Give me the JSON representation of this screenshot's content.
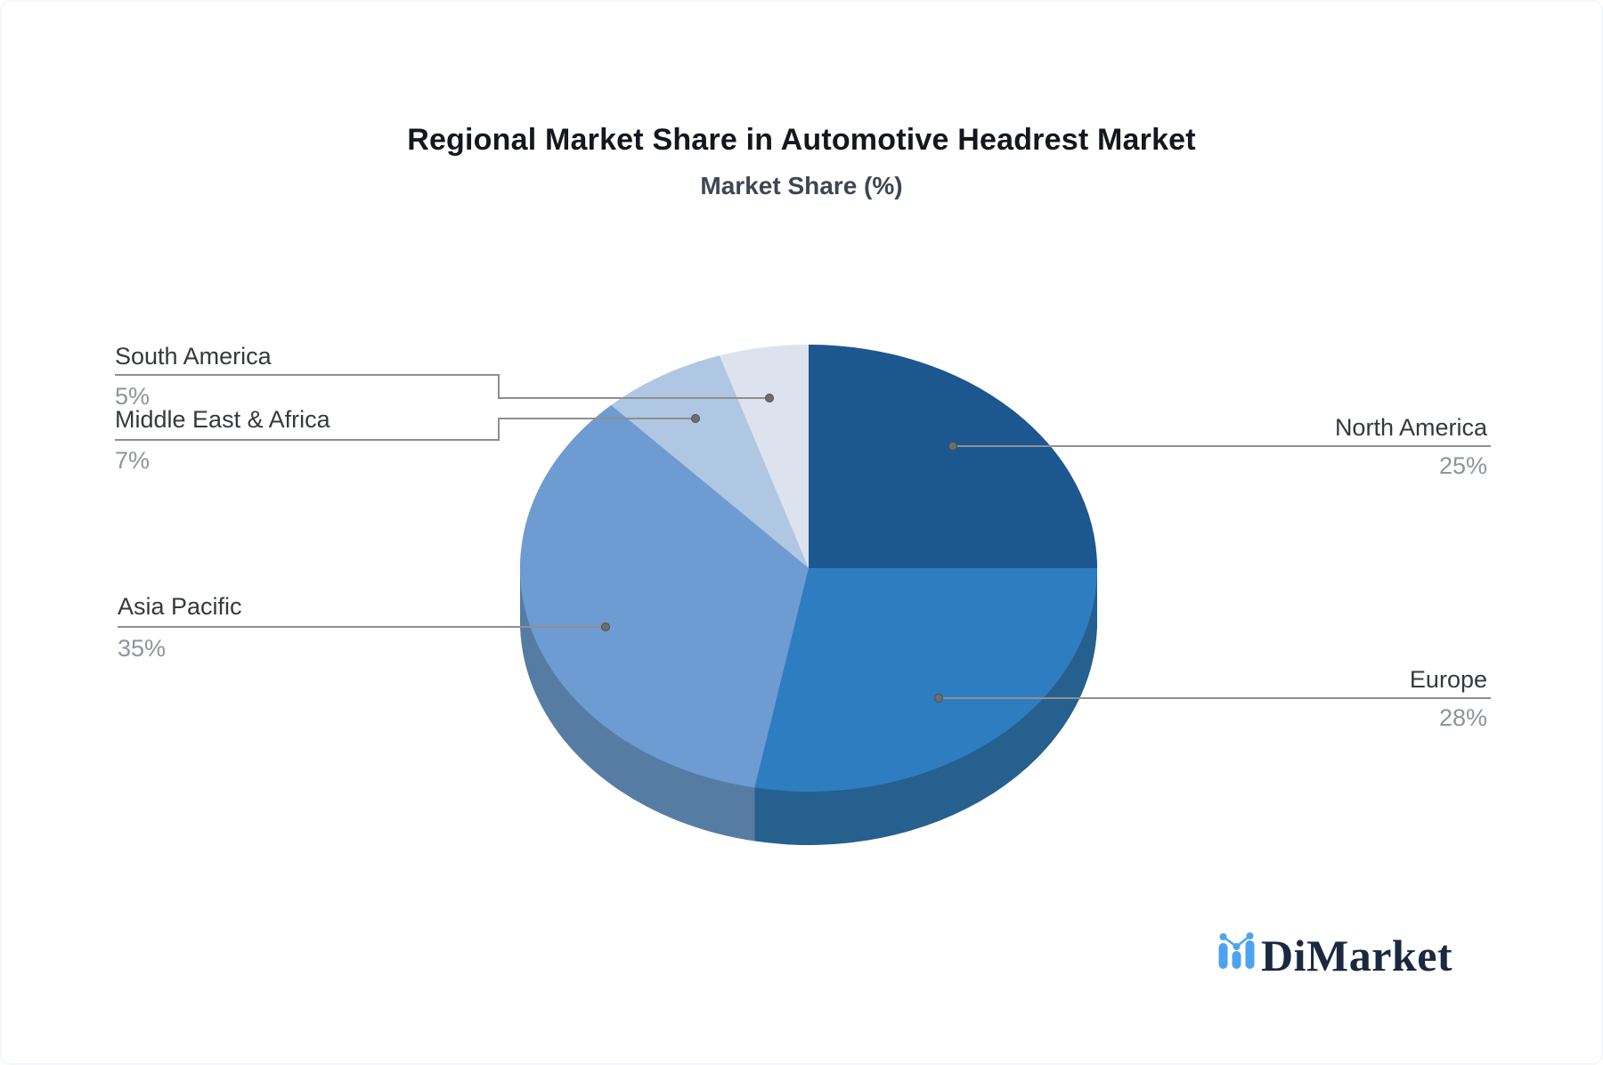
{
  "header": {
    "title": "Regional Market Share in Automotive Headrest Market",
    "subtitle": "Market Share (%)"
  },
  "chart_data": {
    "type": "pie",
    "style": "3d",
    "title": "Regional Market Share in Automotive Headrest Market",
    "value_label": "Market Share (%)",
    "unit": "percent",
    "start_angle_deg": 0,
    "direction": "clockwise",
    "legend_position": "callout-labels",
    "slices": [
      {
        "label": "North America",
        "value": 25,
        "display": "25%",
        "color": "#1d578f",
        "side_color": "#16436e"
      },
      {
        "label": "Europe",
        "value": 28,
        "display": "28%",
        "color": "#2f7dc1",
        "side_color": "#26608f"
      },
      {
        "label": "Asia Pacific",
        "value": 35,
        "display": "35%",
        "color": "#6e9bd1",
        "side_color": "#567ca4"
      },
      {
        "label": "Middle East & Africa",
        "value": 7,
        "display": "7%",
        "color": "#afc7e2",
        "side_color": "#8ca0b6"
      },
      {
        "label": "South America",
        "value": 5,
        "display": "5%",
        "color": "#dce3ee",
        "side_color": "#b0b6bf"
      }
    ]
  },
  "branding": {
    "logo_text": "DiMarket",
    "logo_icon": "bar-chart-logo",
    "accent_color": "#4da3f2",
    "text_color": "#1b2940"
  },
  "colors": {
    "connector": "#8f8f8f",
    "connector_dot": "#6e6e6e",
    "label_text": "#35393d",
    "value_text": "#8f9499",
    "background": "#ffffff"
  }
}
